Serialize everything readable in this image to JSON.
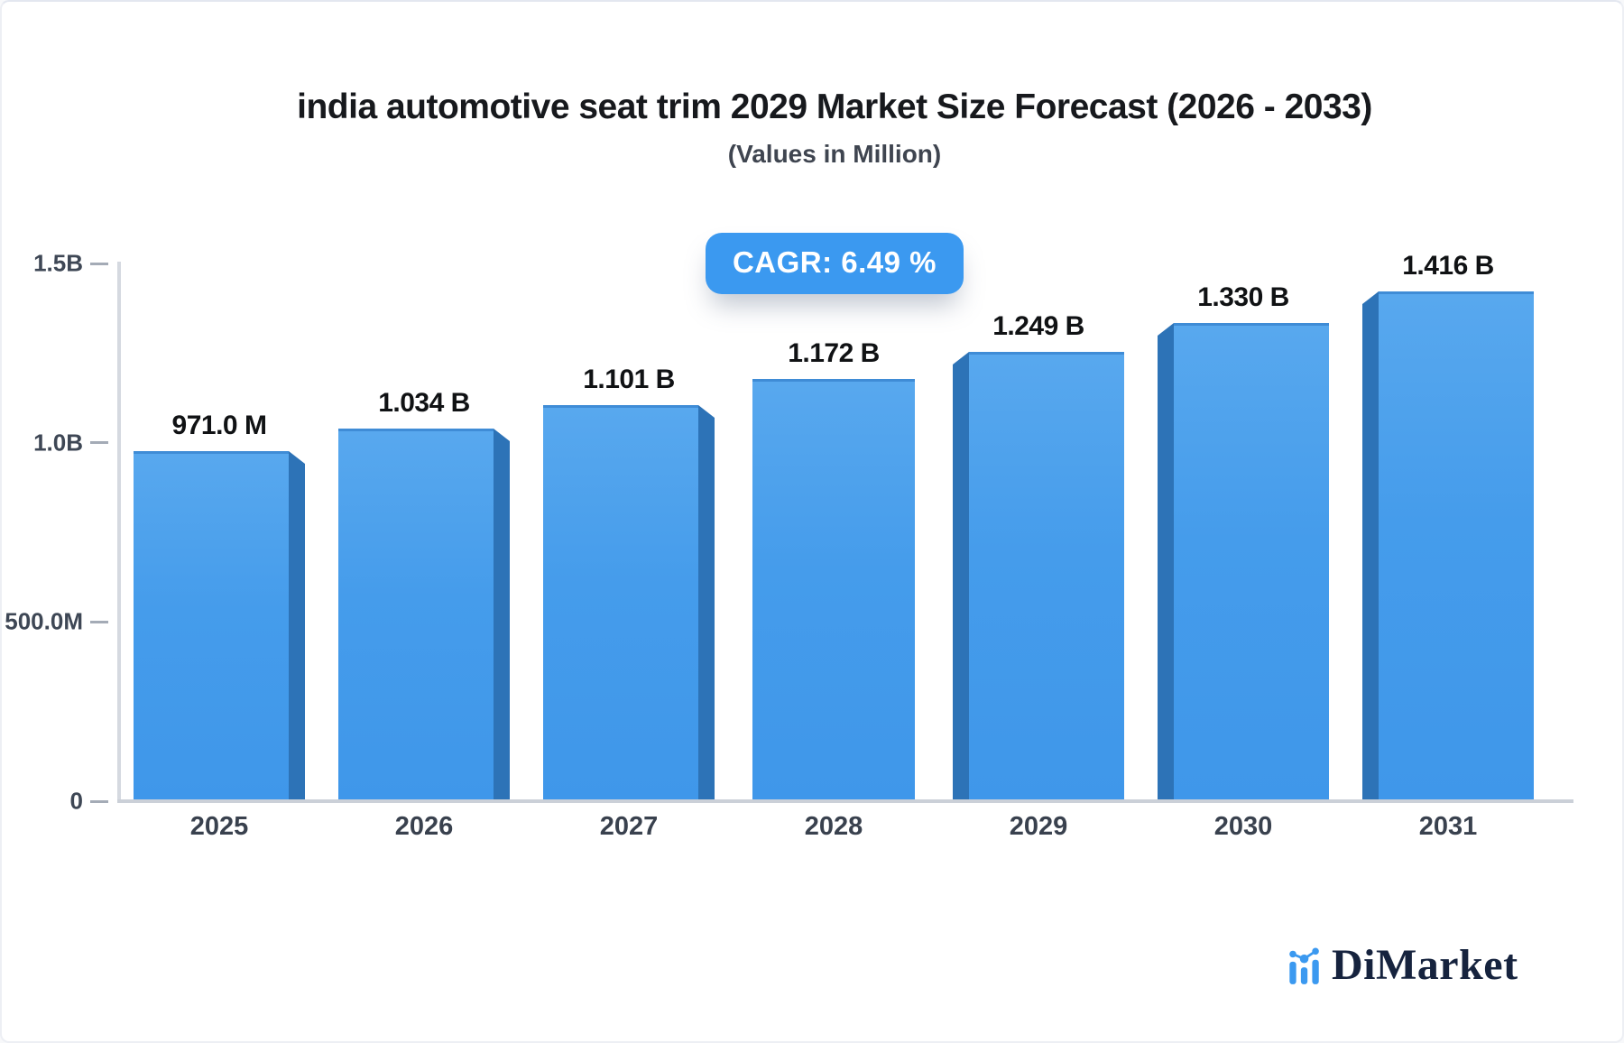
{
  "header": {
    "title": "india automotive seat trim 2029 Market Size Forecast (2026 - 2033)",
    "subtitle": "(Values in Million)",
    "cagr_label": "CAGR: 6.49 %"
  },
  "chart_data": {
    "type": "bar",
    "title": "india automotive seat trim 2029 Market Size Forecast (2026 - 2033)",
    "subtitle": "(Values in Million)",
    "values_unit": "Million",
    "categories": [
      "2025",
      "2026",
      "2027",
      "2028",
      "2029",
      "2030",
      "2031"
    ],
    "values_millions": [
      971,
      1034,
      1101,
      1172,
      1249,
      1330,
      1416
    ],
    "value_labels": [
      "971.0 M",
      "1.034 B",
      "1.101 B",
      "1.172 B",
      "1.249 B",
      "1.330 B",
      "1.416 B"
    ],
    "cagr_percent": 6.49,
    "ylim_millions": [
      0,
      1500
    ],
    "y_ticks": [
      {
        "label": "1.5B",
        "value_millions": 1500
      },
      {
        "label": "1.0B",
        "value_millions": 1000
      },
      {
        "label": "500.0M",
        "value_millions": 500
      },
      {
        "label": "0",
        "value_millions": 0
      }
    ],
    "grid": false,
    "legend": "none",
    "bar_3d_sides": [
      "right",
      "right",
      "right",
      "none",
      "left",
      "left",
      "left"
    ],
    "colors": {
      "bar_face": "#459ceb",
      "bar_face_top_edge": "#3f8cd6",
      "bar_side": "#2d73b7",
      "badge_background": "#3b99f0",
      "badge_text": "#ffffff",
      "axis_line": "#cbd0d8",
      "tick_text": "#3e4755",
      "value_label_text": "#101214",
      "brand_icon": "#3b99f0",
      "brand_text": "#16233e"
    }
  },
  "footer": {
    "brand": "DiMarket"
  }
}
